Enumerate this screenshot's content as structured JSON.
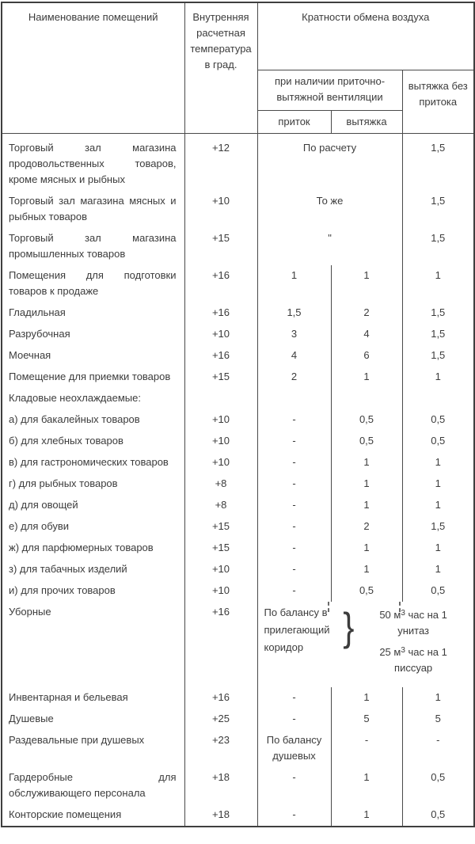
{
  "header": {
    "col_rooms": "Наименование помещений",
    "col_temp": "Внутренняя расчетная температура в град.",
    "col_exchange": "Кратности обмена воздуха",
    "col_supply_exhaust": "при наличии приточно-вытяжной вентиляции",
    "col_supply": "приток",
    "col_exhaust": "вытяжка",
    "col_exhaust_no_supply": "вытяжка без притока"
  },
  "rows": [
    {
      "name": "Торговый зал магазина продовольственных товаров, кроме мясных и рыбных",
      "temp": "+12",
      "merged": "По расчету",
      "no_supply": "1,5"
    },
    {
      "name": "Торговый зал магазина мясных и рыбных товаров",
      "temp": "+10",
      "merged": "То же",
      "no_supply": "1,5"
    },
    {
      "name": "Торговый зал магазина промышленных товаров",
      "temp": "+15",
      "merged": "\"",
      "no_supply": "1,5"
    },
    {
      "name": "Помещения для подготовки товаров к продаже",
      "temp": "+16",
      "supply": "1",
      "exhaust": "1",
      "no_supply": "1"
    },
    {
      "name": "Гладильная",
      "temp": "+16",
      "supply": "1,5",
      "exhaust": "2",
      "no_supply": "1,5"
    },
    {
      "name": "Разрубочная",
      "temp": "+10",
      "supply": "3",
      "exhaust": "4",
      "no_supply": "1,5"
    },
    {
      "name": "Моечная",
      "temp": "+16",
      "supply": "4",
      "exhaust": "6",
      "no_supply": "1,5"
    },
    {
      "name": "Помещение для приемки товаров",
      "temp": "+15",
      "supply": "2",
      "exhaust": "1",
      "no_supply": "1"
    },
    {
      "name": "Кладовые неохлаждаемые:"
    },
    {
      "name": "а) для бакалейных товаров",
      "temp": "+10",
      "supply": "-",
      "exhaust": "0,5",
      "no_supply": "0,5"
    },
    {
      "name": "б) для хлебных товаров",
      "temp": "+10",
      "supply": "-",
      "exhaust": "0,5",
      "no_supply": "0,5"
    },
    {
      "name": "в) для гастрономических товаров",
      "temp": "+10",
      "supply": "-",
      "exhaust": "1",
      "no_supply": "1"
    },
    {
      "name": "г) для рыбных товаров",
      "temp": "+8",
      "supply": "-",
      "exhaust": "1",
      "no_supply": "1"
    },
    {
      "name": "д) для овощей",
      "temp": "+8",
      "supply": "-",
      "exhaust": "1",
      "no_supply": "1"
    },
    {
      "name": "е) для обуви",
      "temp": "+15",
      "supply": "-",
      "exhaust": "2",
      "no_supply": "1,5"
    },
    {
      "name": "ж) для парфюмерных товаров",
      "temp": "+15",
      "supply": "-",
      "exhaust": "1",
      "no_supply": "1"
    },
    {
      "name": "з) для табачных изделий",
      "temp": "+10",
      "supply": "-",
      "exhaust": "1",
      "no_supply": "1"
    },
    {
      "name": "и) для прочих товаров",
      "temp": "+10",
      "supply": "-",
      "exhaust": "0,5",
      "no_supply": "0,5"
    },
    {
      "name": "Уборные",
      "temp": "+16",
      "supply": "По балансу в прилегающий коридор",
      "brace": "}",
      "note1": {
        "pre": "50 м",
        "sup": "3",
        "post": " час на 1",
        "line2": "унитаз"
      },
      "note2": {
        "pre": "25 м",
        "sup": "3",
        "post": " час на 1",
        "line2": "писсуар"
      }
    },
    {
      "name": "Инвентарная и бельевая",
      "temp": "+16",
      "supply": "-",
      "exhaust": "1",
      "no_supply": "1"
    },
    {
      "name": "Душевые",
      "temp": "+25",
      "supply": "-",
      "exhaust": "5",
      "no_supply": "5"
    },
    {
      "name": "Раздевальные при душевых",
      "temp": "+23",
      "supply": "По балансу душевых",
      "exhaust": "-",
      "no_supply": "-"
    },
    {
      "name": "Гардеробные для обслуживающего персонала",
      "temp": "+18",
      "supply": "-",
      "exhaust": "1",
      "no_supply": "0,5"
    },
    {
      "name": "Конторские помещения",
      "temp": "+18",
      "supply": "-",
      "exhaust": "1",
      "no_supply": "0,5"
    }
  ]
}
